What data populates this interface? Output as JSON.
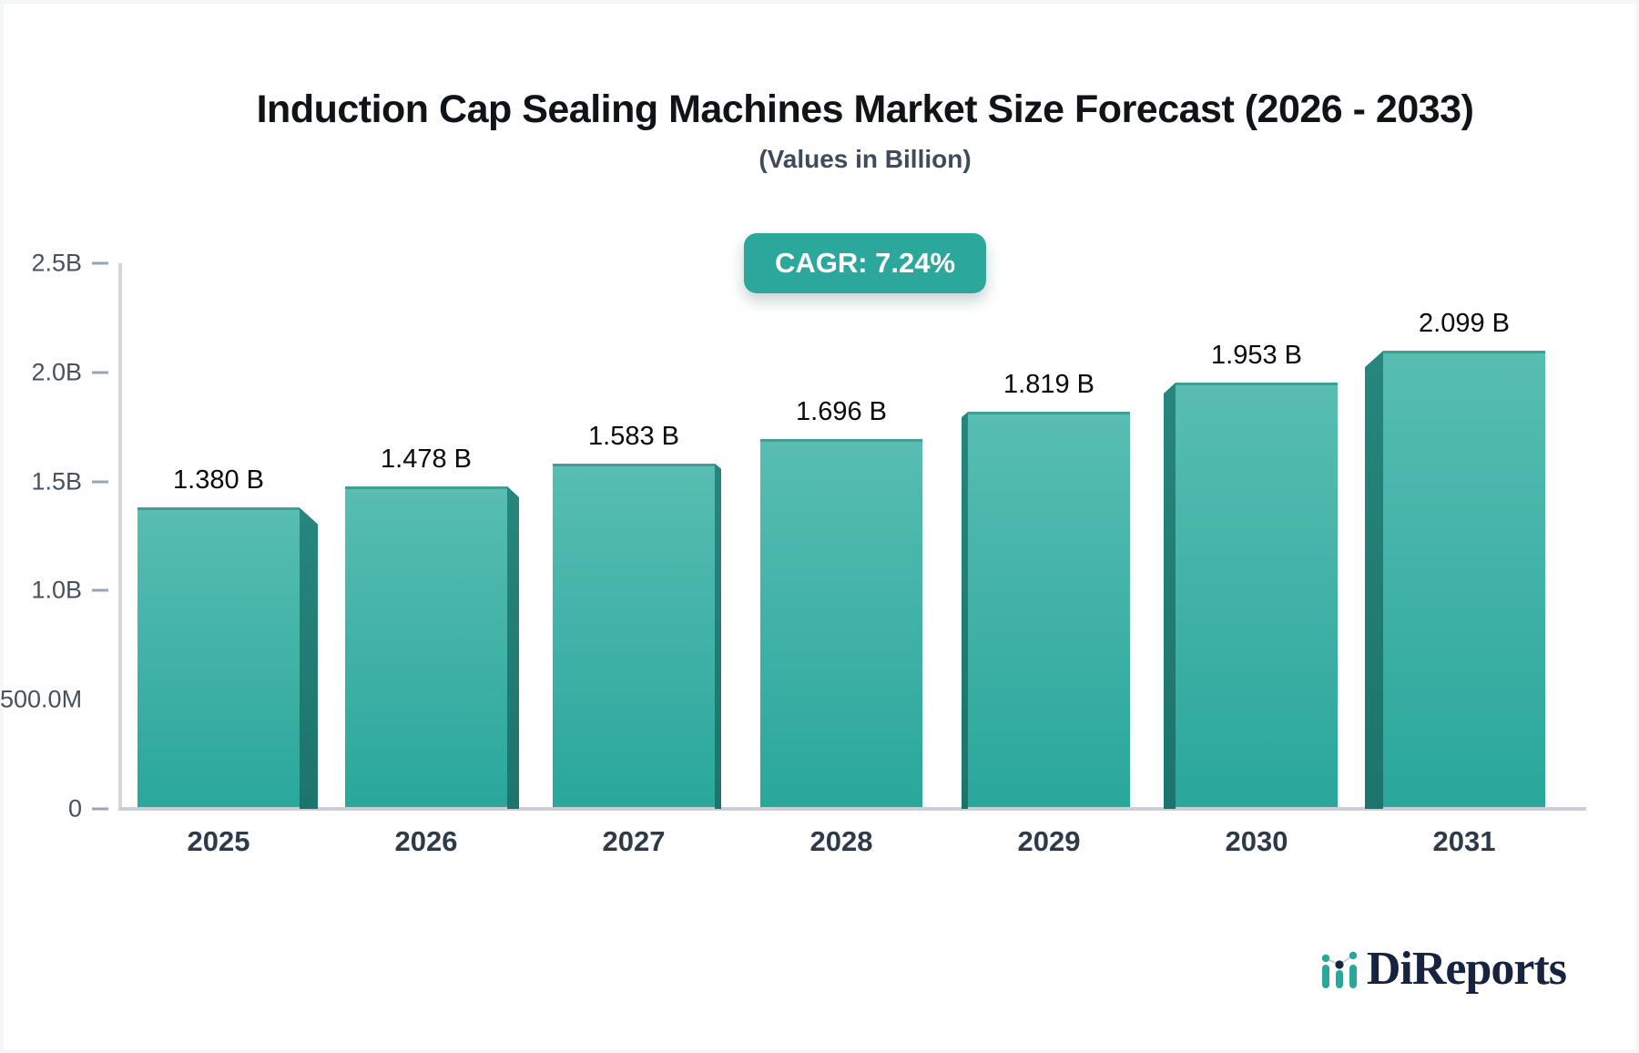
{
  "header": {
    "title": "Induction Cap Sealing Machines Market Size Forecast (2026 - 2033)",
    "subtitle": "(Values in Billion)",
    "cagr_label": "CAGR: 7.24%"
  },
  "chart_data": {
    "type": "bar",
    "title": "Induction Cap Sealing Machines Market Size Forecast (2026 - 2033)",
    "subtitle": "(Values in Billion)",
    "unit": "Billion",
    "cagr": "7.24%",
    "categories": [
      "2025",
      "2026",
      "2027",
      "2028",
      "2029",
      "2030",
      "2031"
    ],
    "values": [
      1.38,
      1.478,
      1.583,
      1.696,
      1.819,
      1.953,
      2.099
    ],
    "value_labels": [
      "1.380 B",
      "1.478 B",
      "1.583 B",
      "1.696 B",
      "1.819 B",
      "1.953 B",
      "2.099 B"
    ],
    "ylim": [
      0,
      2.5
    ],
    "yticks": [
      {
        "label": "2.5B",
        "value": 2.5,
        "dash": true
      },
      {
        "label": "2.0B",
        "value": 2.0,
        "dash": true
      },
      {
        "label": "1.5B",
        "value": 1.5,
        "dash": true
      },
      {
        "label": "1.0B",
        "value": 1.0,
        "dash": true
      },
      {
        "label": "500.0M",
        "value": 0.5,
        "dash": false
      },
      {
        "label": "0",
        "value": 0,
        "dash": true
      }
    ],
    "grid": false,
    "legend": false,
    "bar_style": "3d-perspective-center-vanishing-point",
    "colors": {
      "bar_gradient_top": "#58bdb2",
      "bar_gradient_bottom": "#2aa79b",
      "bar_side_face": "#1f7b73",
      "badge_background": "#2ba89b",
      "badge_text": "#ffffff",
      "axis_line": "#d3d6dd",
      "tick_dash": "#9ba3b0",
      "y_tick_text": "#47515f",
      "x_tick_text": "#2e3949",
      "value_label_text": "#0a0a0a",
      "title_text": "#101418",
      "subtitle_text": "#3f4a5a",
      "logo_text": "#16243f",
      "logo_accent": "#2aa79b"
    }
  },
  "logo": {
    "text": "DiReports"
  }
}
